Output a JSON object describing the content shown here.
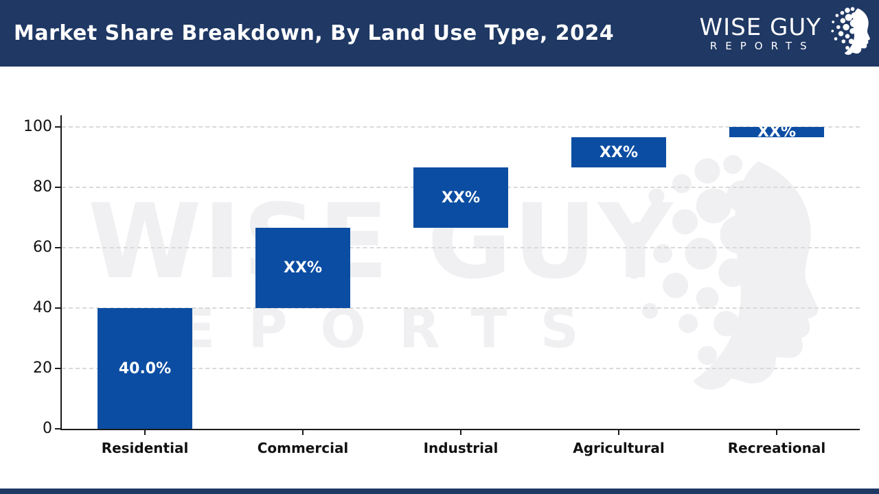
{
  "header": {
    "title": "Market Share Breakdown, By Land Use Type, 2024",
    "logo_line1": "WISE GUY",
    "logo_line2": "REPORTS"
  },
  "watermark": {
    "line1": "WISE GUY",
    "line2": "REPORTS"
  },
  "colors": {
    "navy": "#1f3864",
    "bar_blue": "#0b4da2",
    "grid": "#d9d9d9",
    "axis_text": "#111111",
    "bar_label": "#ffffff",
    "watermark": "#f0f0f2"
  },
  "chart_data": {
    "type": "bar",
    "subtype": "waterfall",
    "title": "Market Share Breakdown, By Land Use Type, 2024",
    "categories": [
      "Residential",
      "Commercial",
      "Industrial",
      "Agricultural",
      "Recreational"
    ],
    "segments": [
      {
        "category": "Residential",
        "start": 0,
        "end": 40,
        "value": 40.0,
        "label": "40.0%"
      },
      {
        "category": "Commercial",
        "start": 40,
        "end": 66.5,
        "value": 26.5,
        "label": "XX%"
      },
      {
        "category": "Industrial",
        "start": 66.5,
        "end": 86.5,
        "value": 20.0,
        "label": "XX%"
      },
      {
        "category": "Agricultural",
        "start": 86.5,
        "end": 96.5,
        "value": 10.0,
        "label": "XX%"
      },
      {
        "category": "Recreational",
        "start": 96.5,
        "end": 100,
        "value": 3.5,
        "label": "XX%"
      }
    ],
    "ylabel": "",
    "xlabel": "",
    "yticks": [
      0,
      20,
      40,
      60,
      80,
      100
    ],
    "ylim": [
      0,
      103.8
    ],
    "grid": "dashed-horizontal",
    "legend": "none",
    "bar_labels_inside": true
  }
}
